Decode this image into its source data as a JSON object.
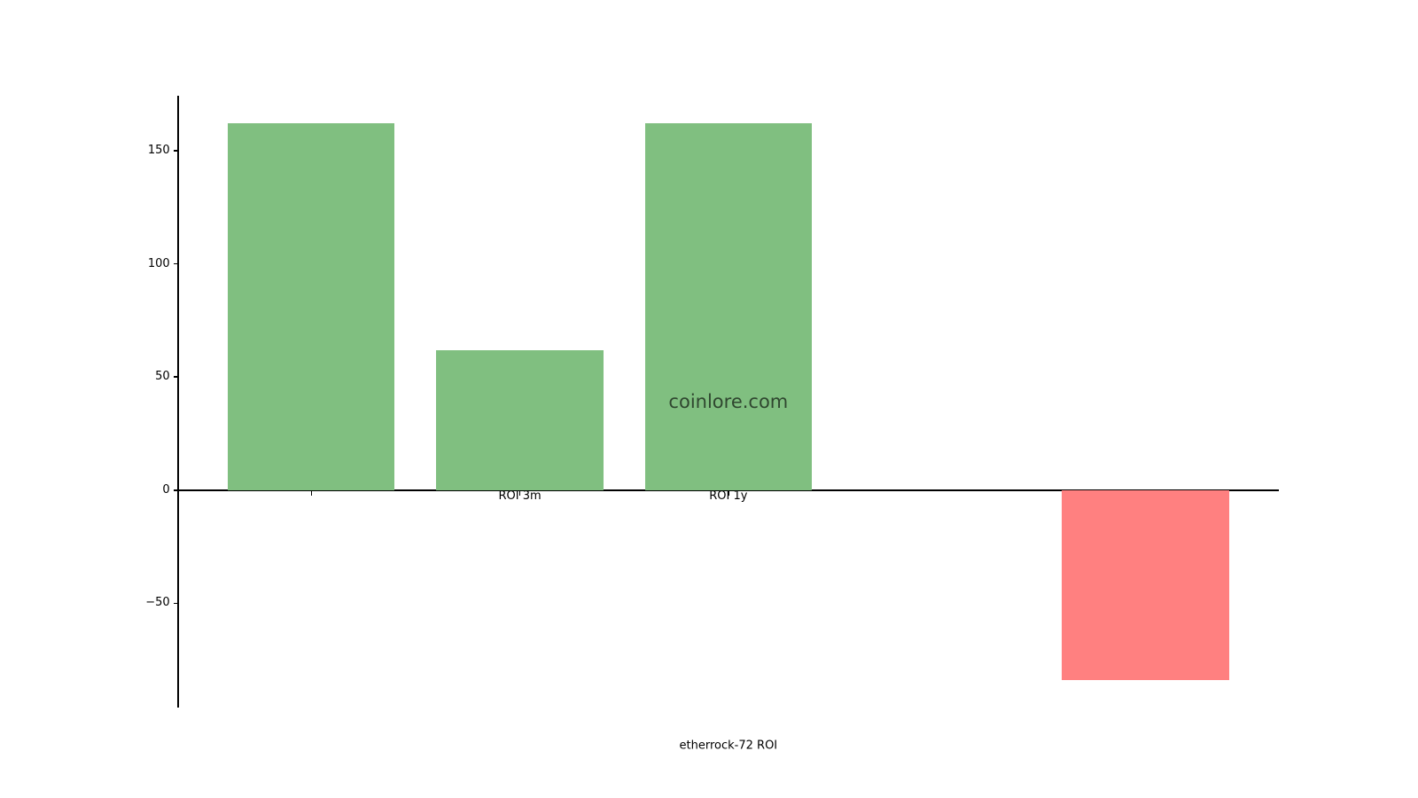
{
  "chart_data": {
    "type": "bar",
    "title": "",
    "xlabel": "etherrock-72 ROI",
    "ylabel": "",
    "categories": [
      "",
      "ROI 3m",
      "ROI 1y",
      "",
      ""
    ],
    "values": [
      162,
      62,
      162,
      0,
      -84
    ],
    "x_tick_labels": [
      {
        "pos": 0,
        "label": ""
      },
      {
        "pos": 1,
        "label": "ROI 3m"
      },
      {
        "pos": 2,
        "label": "ROI 1y"
      }
    ],
    "y_ticks": [
      {
        "value": 150,
        "label": "150"
      },
      {
        "value": 100,
        "label": "100"
      },
      {
        "value": 50,
        "label": "50"
      },
      {
        "value": 0,
        "label": "0"
      },
      {
        "value": -50,
        "label": "−50"
      }
    ],
    "ylim": [
      -96.3,
      174.3
    ],
    "xlim": [
      -0.64,
      4.64
    ],
    "bar_width": 0.8,
    "grid": false,
    "legend": null,
    "colors": {
      "positive": "#80BF80",
      "negative": "#FF8080",
      "axis": "#000000",
      "text": "#000000",
      "watermark": "#000000"
    },
    "watermark": {
      "text": "coinlore.com",
      "opacity": 0.63
    }
  }
}
